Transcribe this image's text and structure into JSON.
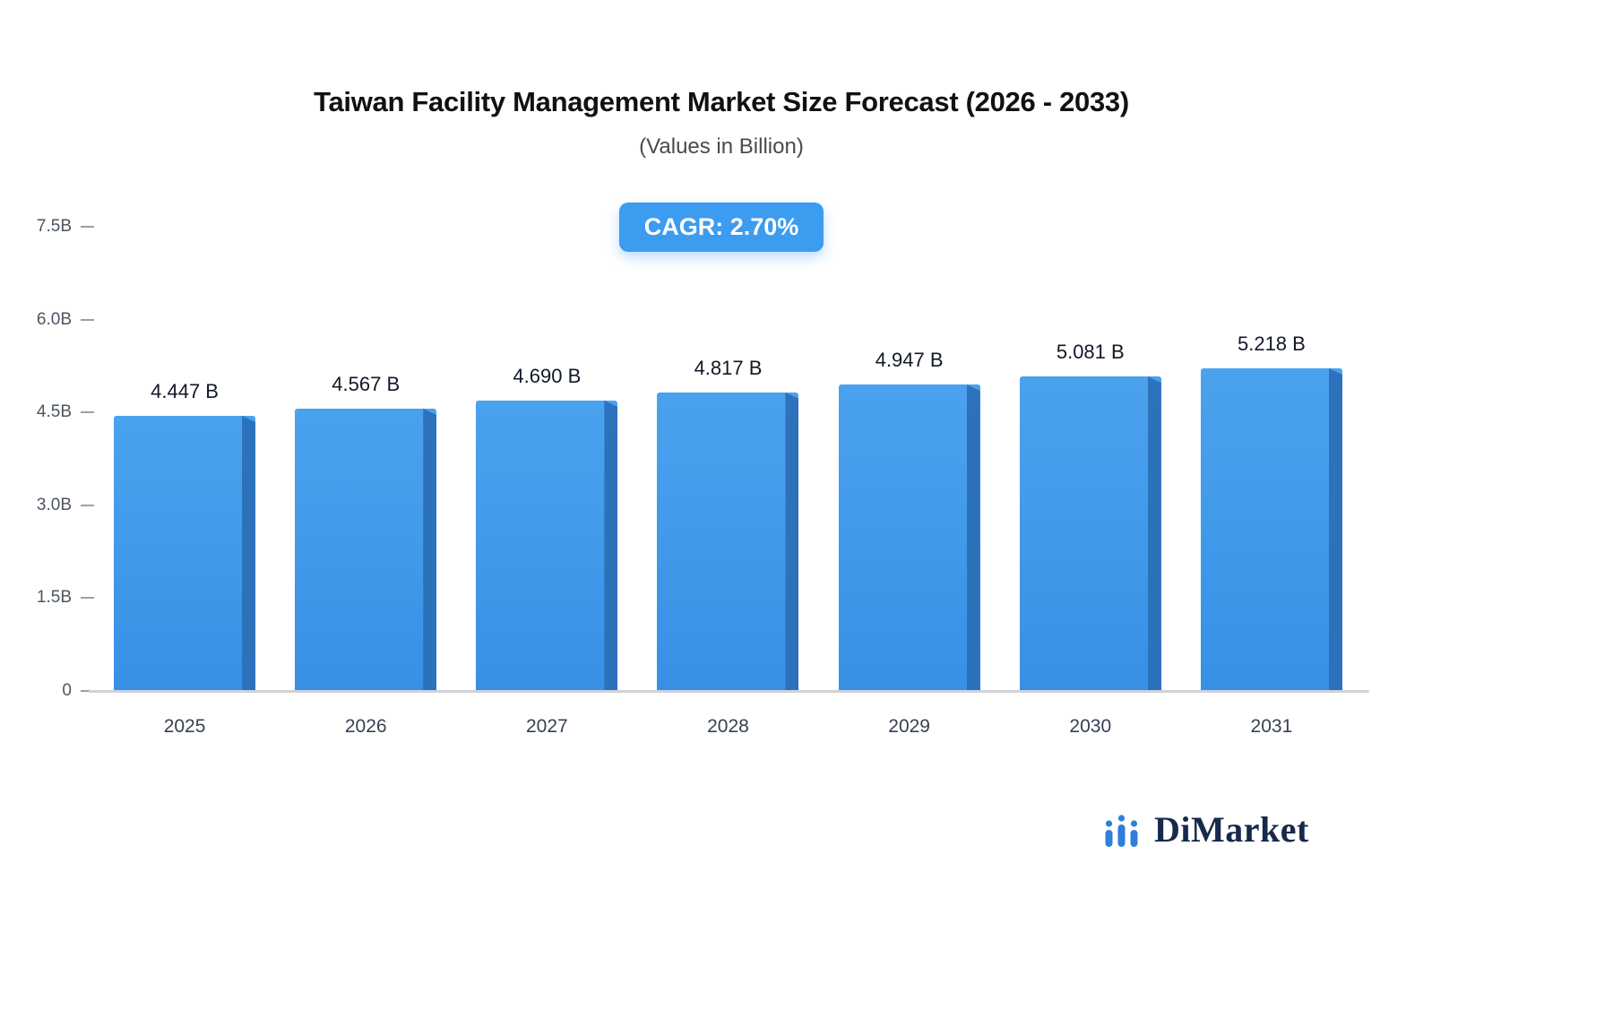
{
  "title": "Taiwan Facility Management Market Size Forecast (2026 - 2033)",
  "subtitle": "(Values in Billion)",
  "badge": {
    "label": "CAGR: 2.70%"
  },
  "logo": {
    "text": "DiMarket",
    "icon": "bar-chart-icon"
  },
  "colors": {
    "badge_bg": "#3b9cf0",
    "bar_face_top": "#4aa2ee",
    "bar_face_bottom": "#3890e6",
    "bar_side": "#2b70b8",
    "logo_blue": "#2e7fdb",
    "logo_text": "#16294d"
  },
  "chart_data": {
    "type": "bar",
    "title": "Taiwan Facility Management Market Size Forecast (2026 - 2033)",
    "subtitle": "(Values in Billion)",
    "cagr": "2.70%",
    "categories": [
      "2025",
      "2026",
      "2027",
      "2028",
      "2029",
      "2030",
      "2031"
    ],
    "values": [
      4.447,
      4.567,
      4.69,
      4.817,
      4.947,
      5.081,
      5.218
    ],
    "value_labels": [
      "4.447 B",
      "4.567 B",
      "4.690 B",
      "4.817 B",
      "4.947 B",
      "5.081 B",
      "5.218 B"
    ],
    "xlabel": "",
    "ylabel": "",
    "ylim": [
      0,
      7.5
    ],
    "yticks": [
      {
        "label": "0",
        "value": 0
      },
      {
        "label": "1.5B",
        "value": 1.5
      },
      {
        "label": "3.0B",
        "value": 3.0
      },
      {
        "label": "4.5B",
        "value": 4.5
      },
      {
        "label": "6.0B",
        "value": 6.0
      },
      {
        "label": "7.5B",
        "value": 7.5
      }
    ],
    "grid": false,
    "legend": "none"
  }
}
